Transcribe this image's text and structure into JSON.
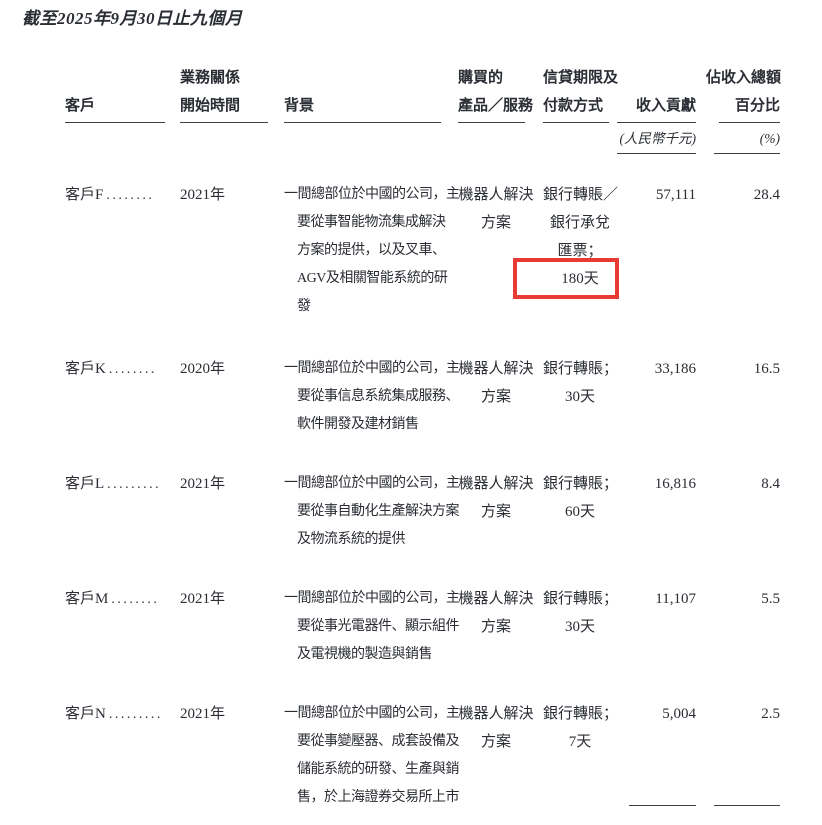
{
  "page_title": "截至2025年9月30日止九個月",
  "colors": {
    "text": "#2a2d33",
    "highlight_box": "#e73b34",
    "rule": "#3a3e45"
  },
  "table": {
    "headers": {
      "customer": "客戶",
      "start_line1": "業務關係",
      "start_line2": "開始時間",
      "background": "背景",
      "product_line1": "購買的",
      "product_line2": "產品／服務",
      "credit_line1": "信貸期限及",
      "credit_line2": "付款方式",
      "revenue": "收入貢獻",
      "revenue_unit": "(人民幣千元)",
      "pct_line1": "佔收入總額",
      "pct_line2": "百分比",
      "pct_unit": "(%)"
    },
    "rows": [
      {
        "customer": "客戶F",
        "leader_dots": "........",
        "start": "2021年",
        "background_lines": [
          "一間總部位於中國的公司，主",
          "要從事智能物流集成解決",
          "方案的提供，以及叉車、",
          "AGV及相關智能系統的研",
          "發"
        ],
        "product_lines": [
          "機器人解決",
          "方案"
        ],
        "credit_lines": [
          "銀行轉賬／",
          "銀行承兌",
          "匯票；"
        ],
        "credit_highlight": "180天",
        "revenue": "57,111",
        "pct": "28.4"
      },
      {
        "customer": "客戶K",
        "leader_dots": "........",
        "start": "2020年",
        "background_lines": [
          "一間總部位於中國的公司，主",
          "要從事信息系統集成服務、",
          "軟件開發及建材銷售"
        ],
        "product_lines": [
          "機器人解決",
          "方案"
        ],
        "credit_lines": [
          "銀行轉賬；",
          "30天"
        ],
        "credit_highlight": null,
        "revenue": "33,186",
        "pct": "16.5"
      },
      {
        "customer": "客戶L",
        "leader_dots": ".........",
        "start": "2021年",
        "background_lines": [
          "一間總部位於中國的公司，主",
          "要從事自動化生產解決方案",
          "及物流系統的提供"
        ],
        "product_lines": [
          "機器人解決",
          "方案"
        ],
        "credit_lines": [
          "銀行轉賬；",
          "60天"
        ],
        "credit_highlight": null,
        "revenue": "16,816",
        "pct": "8.4"
      },
      {
        "customer": "客戶M",
        "leader_dots": "........",
        "start": "2021年",
        "background_lines": [
          "一間總部位於中國的公司，主",
          "要從事光電器件、顯示組件",
          "及電視機的製造與銷售"
        ],
        "product_lines": [
          "機器人解決",
          "方案"
        ],
        "credit_lines": [
          "銀行轉賬；",
          "30天"
        ],
        "credit_highlight": null,
        "revenue": "11,107",
        "pct": "5.5"
      },
      {
        "customer": "客戶N",
        "leader_dots": ".........",
        "start": "2021年",
        "background_lines": [
          "一間總部位於中國的公司，主",
          "要從事變壓器、成套設備及",
          "儲能系統的研發、生產與銷",
          "售，於上海證券交易所上市"
        ],
        "product_lines": [
          "機器人解決",
          "方案"
        ],
        "credit_lines": [
          "銀行轉賬；",
          "7天"
        ],
        "credit_highlight": null,
        "revenue": "5,004",
        "pct": "2.5"
      }
    ]
  }
}
